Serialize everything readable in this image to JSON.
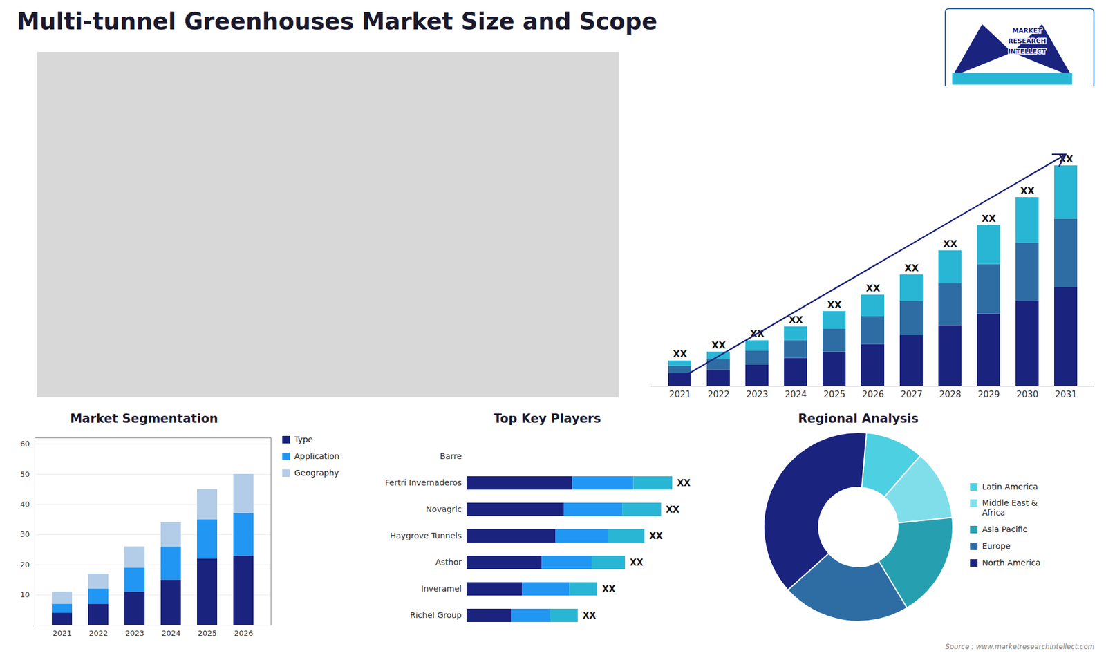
{
  "title": "Multi-tunnel Greenhouses Market Size and Scope",
  "annotations": [
    "MARKET",
    "RESEARCH",
    "INTELLECT"
  ],
  "caption": "Source : www.marketresearchintellect.com",
  "chart_data": [
    {
      "type": "bar",
      "stacked": true,
      "categories": [
        "2021",
        "2022",
        "2023",
        "2024",
        "2025",
        "2026",
        "2027",
        "2028",
        "2029",
        "2030",
        "2031"
      ],
      "series": [
        {
          "color": "#1a237e",
          "values": [
            1.0,
            1.3,
            1.7,
            2.2,
            2.7,
            3.3,
            4.0,
            4.8,
            5.7,
            6.7,
            7.8
          ]
        },
        {
          "color": "#2e6da4",
          "values": [
            0.6,
            0.8,
            1.1,
            1.4,
            1.8,
            2.2,
            2.7,
            3.3,
            3.9,
            4.6,
            5.4
          ]
        },
        {
          "color": "#29b6d4",
          "values": [
            0.4,
            0.6,
            0.8,
            1.1,
            1.4,
            1.7,
            2.1,
            2.6,
            3.1,
            3.6,
            4.2
          ]
        }
      ],
      "ylim": [
        0,
        22.272
      ],
      "yticks": [],
      "tick_labels": "x",
      "grid": false,
      "annotations": [
        {
          "x": "2021",
          "text": "XX"
        },
        {
          "x": "2022",
          "text": "XX"
        },
        {
          "x": "2023",
          "text": "XX"
        },
        {
          "x": "2024",
          "text": "XX"
        },
        {
          "x": "2025",
          "text": "XX"
        },
        {
          "x": "2026",
          "text": "XX"
        },
        {
          "x": "2027",
          "text": "XX"
        },
        {
          "x": "2028",
          "text": "XX"
        },
        {
          "x": "2029",
          "text": "XX"
        },
        {
          "x": "2030",
          "text": "XX"
        },
        {
          "x": "2031",
          "text": "XX"
        },
        {
          "type": "arrow",
          "x1": "2021",
          "y1": 0.6,
          "x2": "2031",
          "y2": 18.3,
          "color": "#1a237e"
        }
      ]
    },
    {
      "type": "bar",
      "stacked": true,
      "title": "Market Segmentation",
      "categories": [
        "2021",
        "2022",
        "2023",
        "2024",
        "2025",
        "2026"
      ],
      "series": [
        {
          "name": "Type",
          "color": "#1a237e",
          "values": [
            4,
            7,
            11,
            15,
            22,
            23
          ]
        },
        {
          "name": "Application",
          "color": "#2196f3",
          "values": [
            3,
            5,
            8,
            11,
            13,
            14
          ]
        },
        {
          "name": "Geography",
          "color": "#b3cde8",
          "values": [
            4,
            5,
            7,
            8,
            10,
            13
          ]
        }
      ],
      "ylim": [
        0,
        62
      ],
      "yticks": [
        10,
        20,
        30,
        40,
        50,
        60
      ],
      "grid": true,
      "legend": "right"
    },
    {
      "type": "bar",
      "orientation": "horizontal",
      "stacked": true,
      "title": "Top Key Players",
      "categories": [
        "Barre",
        "Fertri Invernaderos",
        "Novagric",
        "Haygrove Tunnels",
        "Asthor",
        "Inveramel",
        "Richel Group"
      ],
      "series": [
        {
          "color": "#1a237e",
          "values": [
            0,
            38,
            35,
            32,
            27,
            20,
            16
          ]
        },
        {
          "color": "#2196f3",
          "values": [
            0,
            22,
            21,
            19,
            18,
            17,
            14
          ]
        },
        {
          "color": "#29b6d4",
          "values": [
            0,
            14,
            14,
            13,
            12,
            10,
            10
          ]
        }
      ],
      "xlim": [
        0,
        85
      ],
      "tick_labels": "y",
      "grid": false,
      "annotations": [
        {
          "y": "Fertri Invernaderos",
          "text": "XX"
        },
        {
          "y": "Novagric",
          "text": "XX"
        },
        {
          "y": "Haygrove Tunnels",
          "text": "XX"
        },
        {
          "y": "Asthor",
          "text": "XX"
        },
        {
          "y": "Inveramel",
          "text": "XX"
        },
        {
          "y": "Richel Group",
          "text": "XX"
        }
      ]
    },
    {
      "type": "donut",
      "title": "Regional Analysis",
      "categories": [
        "Latin America",
        "Middle East &\nAfrica",
        "Asia Pacific",
        "Europe",
        "North America"
      ],
      "values": [
        10,
        12,
        18,
        22,
        38
      ],
      "colors": [
        "#4dd0e1",
        "#80deea",
        "#26a0b0",
        "#2e6da4",
        "#1a237e"
      ],
      "legend": "right"
    }
  ]
}
